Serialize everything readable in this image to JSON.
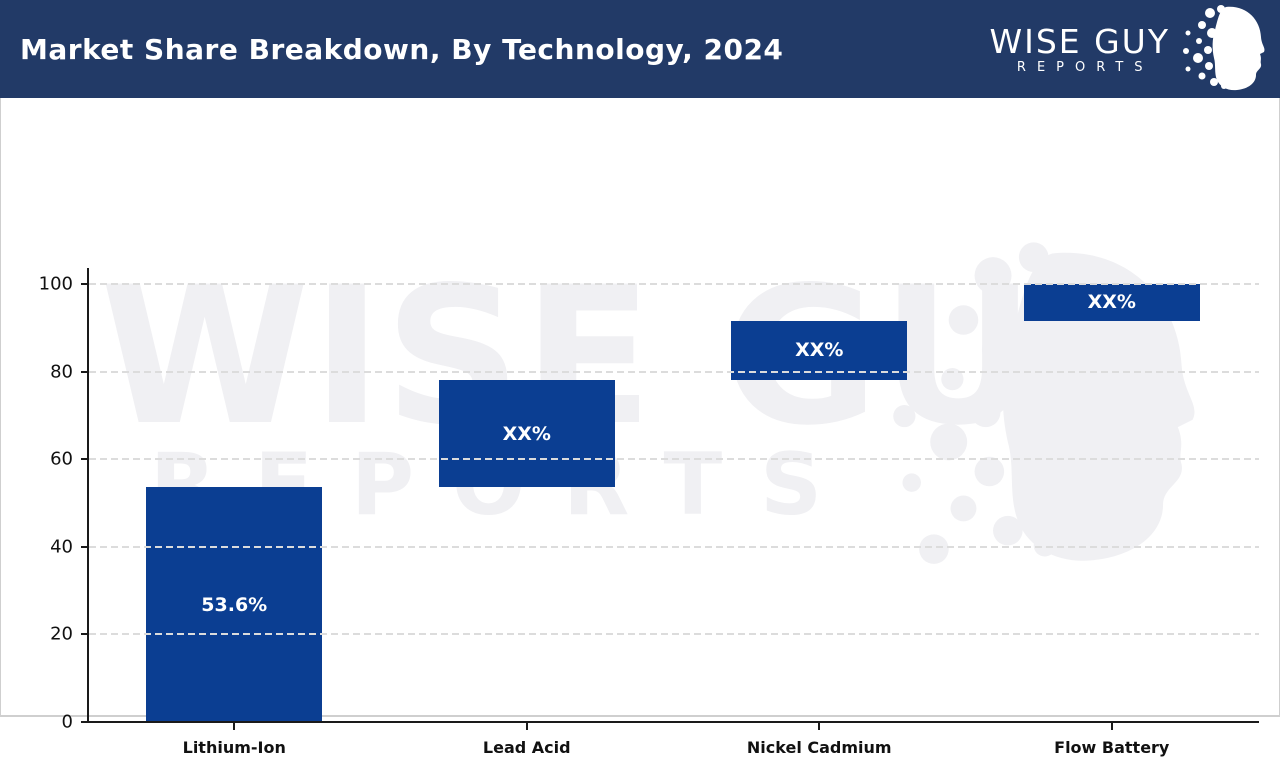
{
  "header": {
    "title": "Market Share Breakdown, By Technology, 2024",
    "bg_color": "#223A67",
    "logo": {
      "line1": "WISE GUY",
      "line2": "REPORTS"
    }
  },
  "watermark": {
    "line1": "WISE GUY",
    "line2": "REPORTS"
  },
  "chart_data": {
    "type": "bar",
    "subtype": "waterfall",
    "title": "Market Share Breakdown, By Technology, 2024",
    "categories": [
      "Lithium-Ion",
      "Lead Acid",
      "Nickel Cadmium",
      "Flow Battery"
    ],
    "bars": [
      {
        "category": "Lithium-Ion",
        "start": 0,
        "end": 53.6,
        "label": "53.6%"
      },
      {
        "category": "Lead Acid",
        "start": 53.6,
        "end": 78.1,
        "label": "XX%"
      },
      {
        "category": "Nickel Cadmium",
        "start": 78.1,
        "end": 91.6,
        "label": "XX%"
      },
      {
        "category": "Flow Battery",
        "start": 91.6,
        "end": 100,
        "label": "XX%"
      }
    ],
    "ylim": [
      0,
      100
    ],
    "yticks": [
      0,
      20,
      40,
      60,
      80,
      100
    ],
    "grid": "dashed horizontal, drawn above bars",
    "legend": "none",
    "bar_color": "#0B3E92",
    "bar_label_color": "#FFFFFF"
  }
}
